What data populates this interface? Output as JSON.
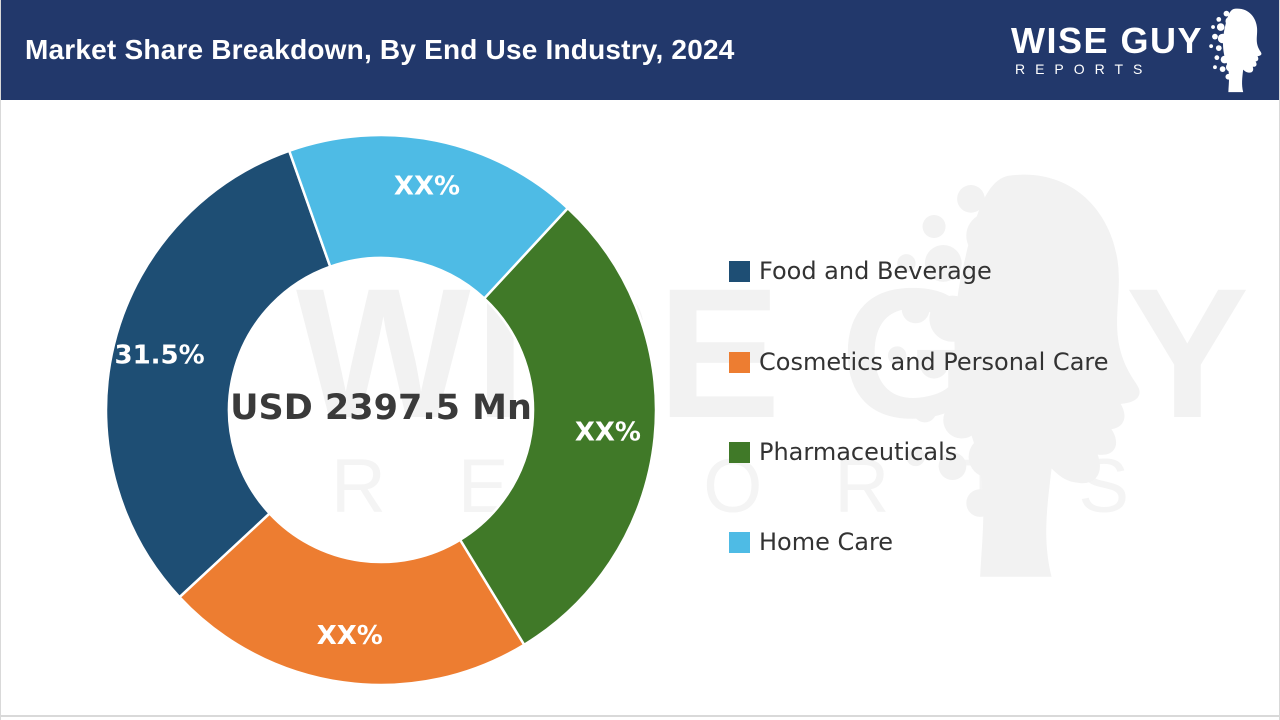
{
  "header": {
    "title": "Market Share Breakdown, By End Use Industry, 2024",
    "background_color": "#22386B",
    "logo": {
      "name": "WISE GUY",
      "tagline": "REPORTS"
    }
  },
  "chart_data": {
    "type": "pie",
    "subtype": "donut",
    "title": "Market Share Breakdown, By End Use Industry, 2024",
    "center_label": "USD 2397.5 Mn",
    "start_angle_deg": 109.5,
    "direction": "counterclockwise",
    "inner_radius_ratio": 0.553,
    "legend_position": "right",
    "segments": [
      {
        "label": "Food and Beverage",
        "value": 31.5,
        "display_value": "31.5%",
        "color": "#1E4E74"
      },
      {
        "label": "Cosmetics and Personal Care",
        "value": 21.8,
        "display_value": "XX%",
        "color": "#ED7D31"
      },
      {
        "label": "Pharmaceuticals",
        "value": 29.4,
        "display_value": "XX%",
        "color": "#407928"
      },
      {
        "label": "Home Care",
        "value": 17.3,
        "display_value": "XX%",
        "color": "#4EBBE5"
      }
    ]
  },
  "watermark": {
    "line1": "WISE GUY",
    "line2": "REPORTS"
  },
  "colors": {
    "header_background": "#22386B",
    "title_text": "#ffffff",
    "center_text": "#3a3a3a",
    "legend_text": "#333333",
    "segment_label_text": "#ffffff",
    "watermark": "#f2f2f2",
    "border": "#d9d9d9"
  }
}
